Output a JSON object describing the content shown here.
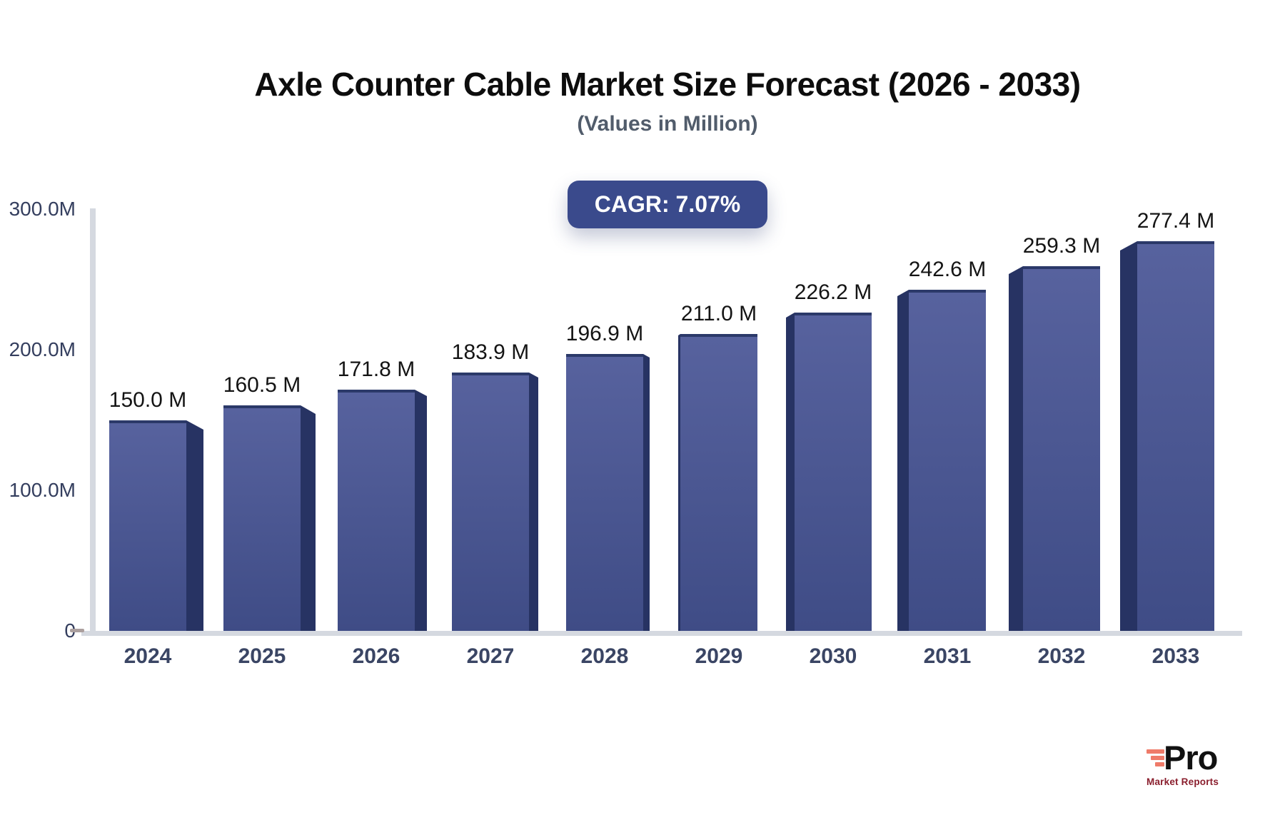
{
  "header": {
    "title": "Axle Counter Cable Market Size Forecast (2026 - 2033)",
    "subtitle": "(Values in Million)",
    "cagr_label": "CAGR: 7.07%"
  },
  "chart_data": {
    "type": "bar",
    "title": "Axle Counter Cable Market Size Forecast (2026 - 2033)",
    "subtitle": "(Values in Million)",
    "unit": "Million",
    "cagr_pct": 7.07,
    "categories": [
      "2024",
      "2025",
      "2026",
      "2027",
      "2028",
      "2029",
      "2030",
      "2031",
      "2032",
      "2033"
    ],
    "values": [
      150.0,
      160.5,
      171.8,
      183.9,
      196.9,
      211.0,
      226.2,
      242.6,
      259.3,
      277.4
    ],
    "value_label_suffix": " M",
    "y_ticks": [
      {
        "label": "300.0M",
        "value": 300
      },
      {
        "label": "200.0M",
        "value": 200
      },
      {
        "label": "100.0M",
        "value": 100
      },
      {
        "label": "0",
        "value": 0
      }
    ],
    "ylim": [
      0,
      300
    ],
    "xlabel": "",
    "ylabel": "",
    "grid": false,
    "legend": false,
    "bar_style": "3d-beveled"
  },
  "colors": {
    "bar_face_top": "#57629e",
    "bar_face_bottom": "#3f4c86",
    "bar_side": "#273363",
    "bar_top_edge": "#2b3969",
    "badge_bg": "#3a4a8c",
    "badge_text": "#ffffff",
    "axis_line": "#d5d9e0",
    "zero_tick": "#ab9f9e",
    "tick_text": "#343e5e",
    "xtick_text": "#3a4564",
    "value_text": "#141414",
    "title_text": "#0d0d0d",
    "subtitle_text": "#515c6b",
    "logo_bar": "#ef7b69",
    "logo_text": "#111111",
    "logo_subtext": "#8a1e2d"
  },
  "branding": {
    "logo_text": "Pro",
    "logo_subtext": "Market Reports"
  }
}
